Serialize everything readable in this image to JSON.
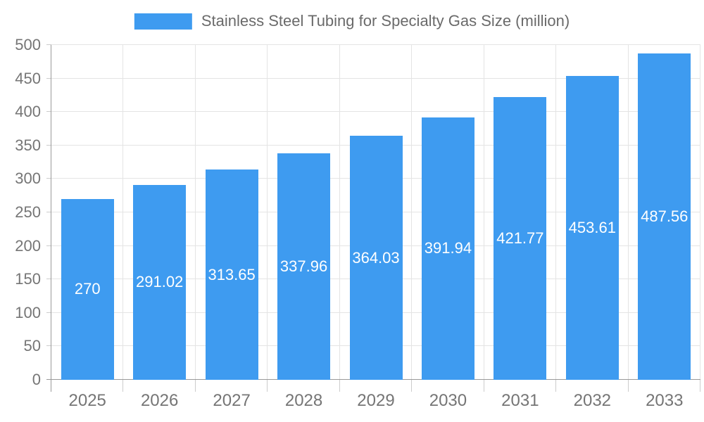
{
  "legend": {
    "series_label": "Stainless Steel Tubing for Specialty Gas Size (million)"
  },
  "colors": {
    "bar": "#3E9BF0",
    "grid": "#E4E4E4",
    "axis": "#999999",
    "tick": "#CCCCCC",
    "axis_text": "#757575",
    "title_text": "#6A6A6A",
    "bar_label_text": "#FFFFFF",
    "background": "#FFFFFF"
  },
  "chart_data": {
    "type": "bar",
    "title": "Stainless Steel Tubing for Specialty Gas Size (million)",
    "categories": [
      "2025",
      "2026",
      "2027",
      "2028",
      "2029",
      "2030",
      "2031",
      "2032",
      "2033"
    ],
    "values": [
      270,
      291.02,
      313.65,
      337.96,
      364.03,
      391.94,
      421.77,
      453.61,
      487.56
    ],
    "value_labels": [
      "270",
      "291.02",
      "313.65",
      "337.96",
      "364.03",
      "391.94",
      "421.77",
      "453.61",
      "487.56"
    ],
    "xlabel": "",
    "ylabel": "",
    "ylim": [
      0,
      500
    ],
    "ytick_step": 50,
    "ytick_labels": [
      "0",
      "50",
      "100",
      "150",
      "200",
      "250",
      "300",
      "350",
      "400",
      "450",
      "500"
    ],
    "grid": true,
    "legend_position": "top",
    "value_label_position": "inside-center"
  }
}
